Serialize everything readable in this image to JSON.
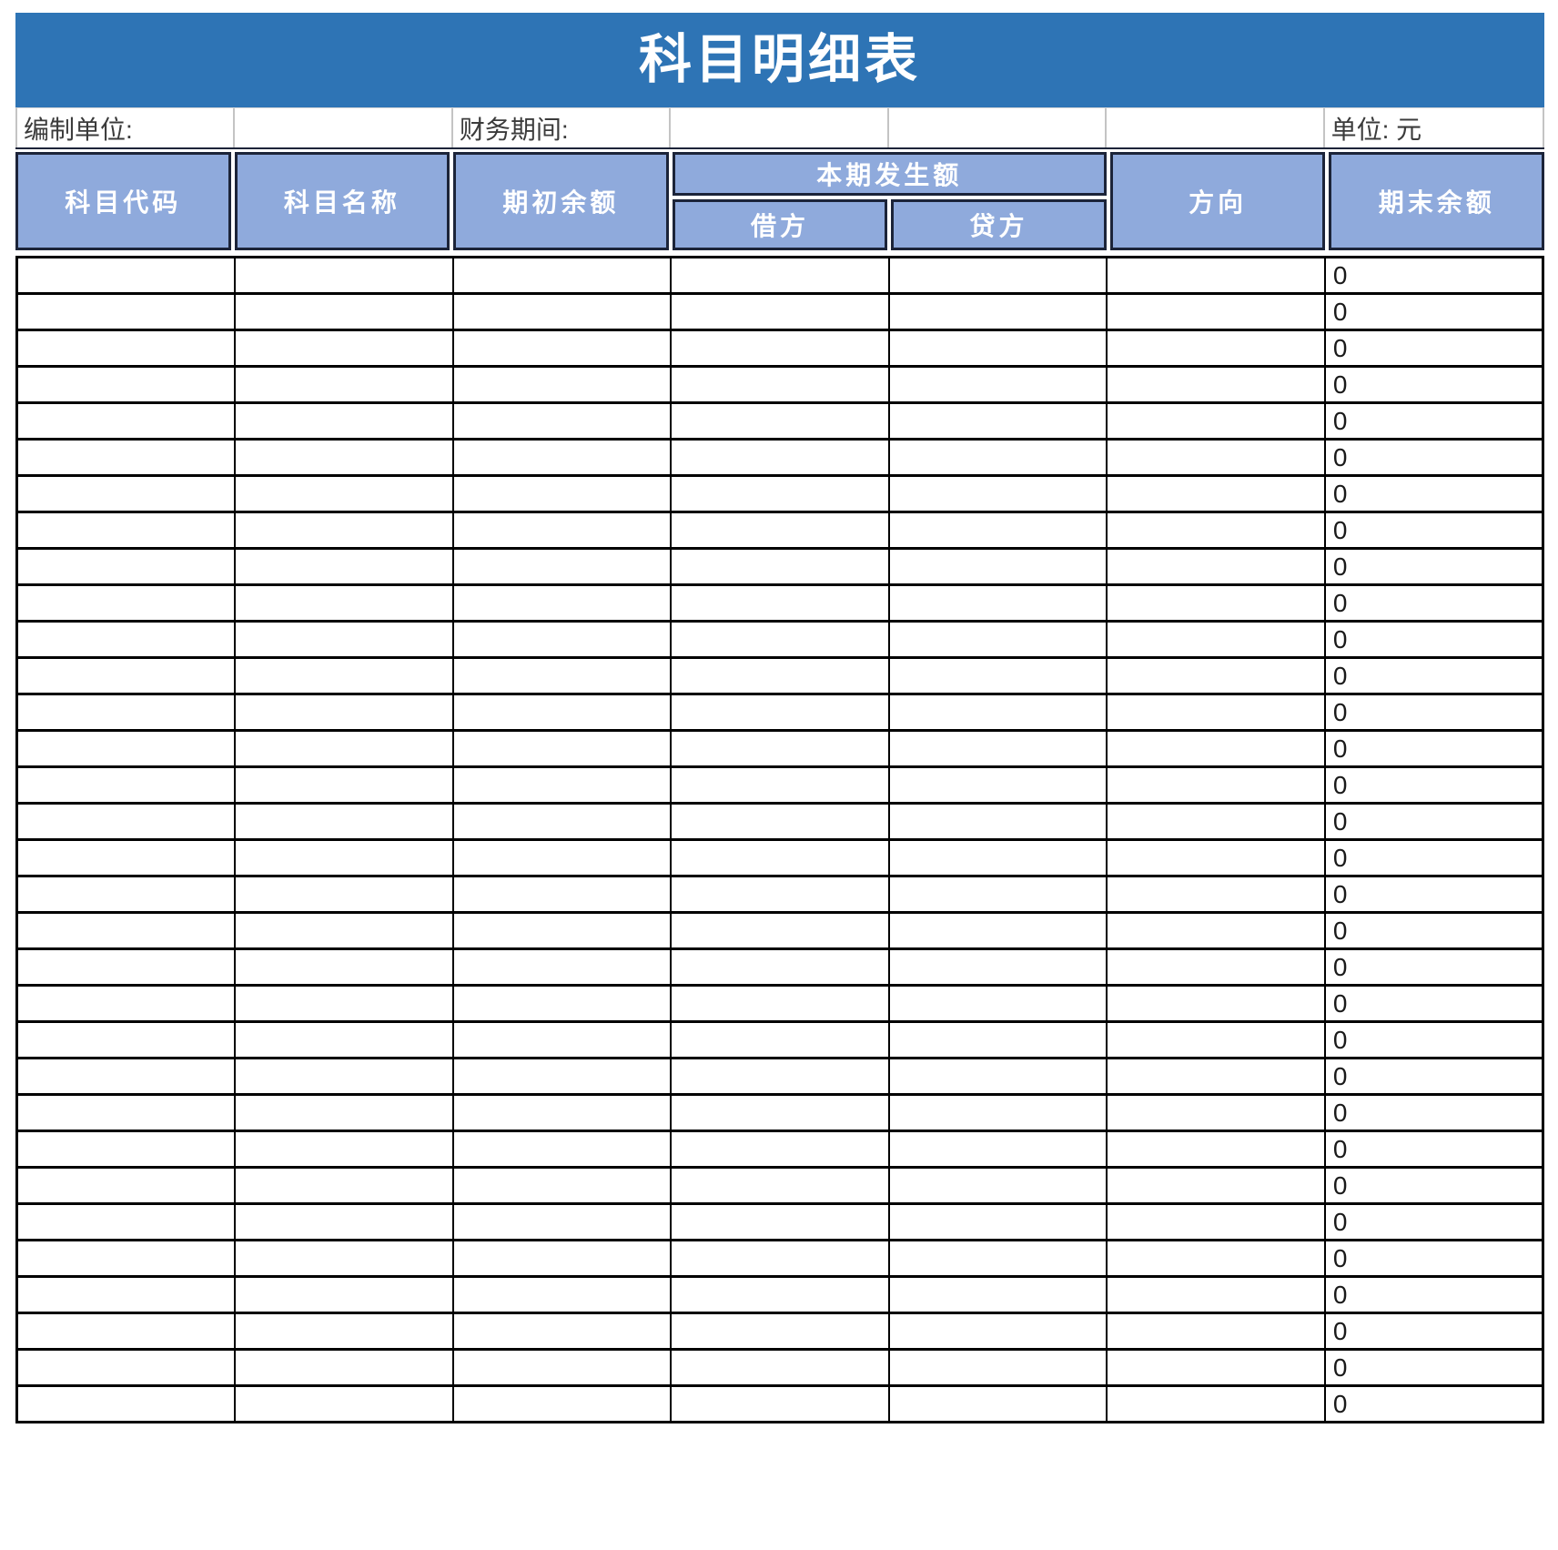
{
  "title": "科目明细表",
  "info": {
    "prepared_by_label": "编制单位:",
    "prepared_by_value": "",
    "period_label": "财务期间:",
    "period_value": "",
    "unit_label": "单位: 元"
  },
  "table": {
    "headers": {
      "code": "科目代码",
      "name": "科目名称",
      "opening_balance": "期初余额",
      "current_period": "本期发生额",
      "debit": "借方",
      "credit": "贷方",
      "direction": "方向",
      "ending_balance": "期末余额"
    },
    "rows": [
      {
        "code": "",
        "name": "",
        "opening_balance": "",
        "debit": "",
        "credit": "",
        "direction": "",
        "ending_balance": "0"
      },
      {
        "code": "",
        "name": "",
        "opening_balance": "",
        "debit": "",
        "credit": "",
        "direction": "",
        "ending_balance": "0"
      },
      {
        "code": "",
        "name": "",
        "opening_balance": "",
        "debit": "",
        "credit": "",
        "direction": "",
        "ending_balance": "0"
      },
      {
        "code": "",
        "name": "",
        "opening_balance": "",
        "debit": "",
        "credit": "",
        "direction": "",
        "ending_balance": "0"
      },
      {
        "code": "",
        "name": "",
        "opening_balance": "",
        "debit": "",
        "credit": "",
        "direction": "",
        "ending_balance": "0"
      },
      {
        "code": "",
        "name": "",
        "opening_balance": "",
        "debit": "",
        "credit": "",
        "direction": "",
        "ending_balance": "0"
      },
      {
        "code": "",
        "name": "",
        "opening_balance": "",
        "debit": "",
        "credit": "",
        "direction": "",
        "ending_balance": "0"
      },
      {
        "code": "",
        "name": "",
        "opening_balance": "",
        "debit": "",
        "credit": "",
        "direction": "",
        "ending_balance": "0"
      },
      {
        "code": "",
        "name": "",
        "opening_balance": "",
        "debit": "",
        "credit": "",
        "direction": "",
        "ending_balance": "0"
      },
      {
        "code": "",
        "name": "",
        "opening_balance": "",
        "debit": "",
        "credit": "",
        "direction": "",
        "ending_balance": "0"
      },
      {
        "code": "",
        "name": "",
        "opening_balance": "",
        "debit": "",
        "credit": "",
        "direction": "",
        "ending_balance": "0"
      },
      {
        "code": "",
        "name": "",
        "opening_balance": "",
        "debit": "",
        "credit": "",
        "direction": "",
        "ending_balance": "0"
      },
      {
        "code": "",
        "name": "",
        "opening_balance": "",
        "debit": "",
        "credit": "",
        "direction": "",
        "ending_balance": "0"
      },
      {
        "code": "",
        "name": "",
        "opening_balance": "",
        "debit": "",
        "credit": "",
        "direction": "",
        "ending_balance": "0"
      },
      {
        "code": "",
        "name": "",
        "opening_balance": "",
        "debit": "",
        "credit": "",
        "direction": "",
        "ending_balance": "0"
      },
      {
        "code": "",
        "name": "",
        "opening_balance": "",
        "debit": "",
        "credit": "",
        "direction": "",
        "ending_balance": "0"
      },
      {
        "code": "",
        "name": "",
        "opening_balance": "",
        "debit": "",
        "credit": "",
        "direction": "",
        "ending_balance": "0"
      },
      {
        "code": "",
        "name": "",
        "opening_balance": "",
        "debit": "",
        "credit": "",
        "direction": "",
        "ending_balance": "0"
      },
      {
        "code": "",
        "name": "",
        "opening_balance": "",
        "debit": "",
        "credit": "",
        "direction": "",
        "ending_balance": "0"
      },
      {
        "code": "",
        "name": "",
        "opening_balance": "",
        "debit": "",
        "credit": "",
        "direction": "",
        "ending_balance": "0"
      },
      {
        "code": "",
        "name": "",
        "opening_balance": "",
        "debit": "",
        "credit": "",
        "direction": "",
        "ending_balance": "0"
      },
      {
        "code": "",
        "name": "",
        "opening_balance": "",
        "debit": "",
        "credit": "",
        "direction": "",
        "ending_balance": "0"
      },
      {
        "code": "",
        "name": "",
        "opening_balance": "",
        "debit": "",
        "credit": "",
        "direction": "",
        "ending_balance": "0"
      },
      {
        "code": "",
        "name": "",
        "opening_balance": "",
        "debit": "",
        "credit": "",
        "direction": "",
        "ending_balance": "0"
      },
      {
        "code": "",
        "name": "",
        "opening_balance": "",
        "debit": "",
        "credit": "",
        "direction": "",
        "ending_balance": "0"
      },
      {
        "code": "",
        "name": "",
        "opening_balance": "",
        "debit": "",
        "credit": "",
        "direction": "",
        "ending_balance": "0"
      },
      {
        "code": "",
        "name": "",
        "opening_balance": "",
        "debit": "",
        "credit": "",
        "direction": "",
        "ending_balance": "0"
      },
      {
        "code": "",
        "name": "",
        "opening_balance": "",
        "debit": "",
        "credit": "",
        "direction": "",
        "ending_balance": "0"
      },
      {
        "code": "",
        "name": "",
        "opening_balance": "",
        "debit": "",
        "credit": "",
        "direction": "",
        "ending_balance": "0"
      },
      {
        "code": "",
        "name": "",
        "opening_balance": "",
        "debit": "",
        "credit": "",
        "direction": "",
        "ending_balance": "0"
      },
      {
        "code": "",
        "name": "",
        "opening_balance": "",
        "debit": "",
        "credit": "",
        "direction": "",
        "ending_balance": "0"
      },
      {
        "code": "",
        "name": "",
        "opening_balance": "",
        "debit": "",
        "credit": "",
        "direction": "",
        "ending_balance": "0"
      }
    ]
  },
  "colors": {
    "title_bar": "#2e74b5",
    "header_fill": "#8faadc",
    "header_border": "#1c2439",
    "grid_border": "#000000",
    "info_border": "#c4c4c4"
  }
}
